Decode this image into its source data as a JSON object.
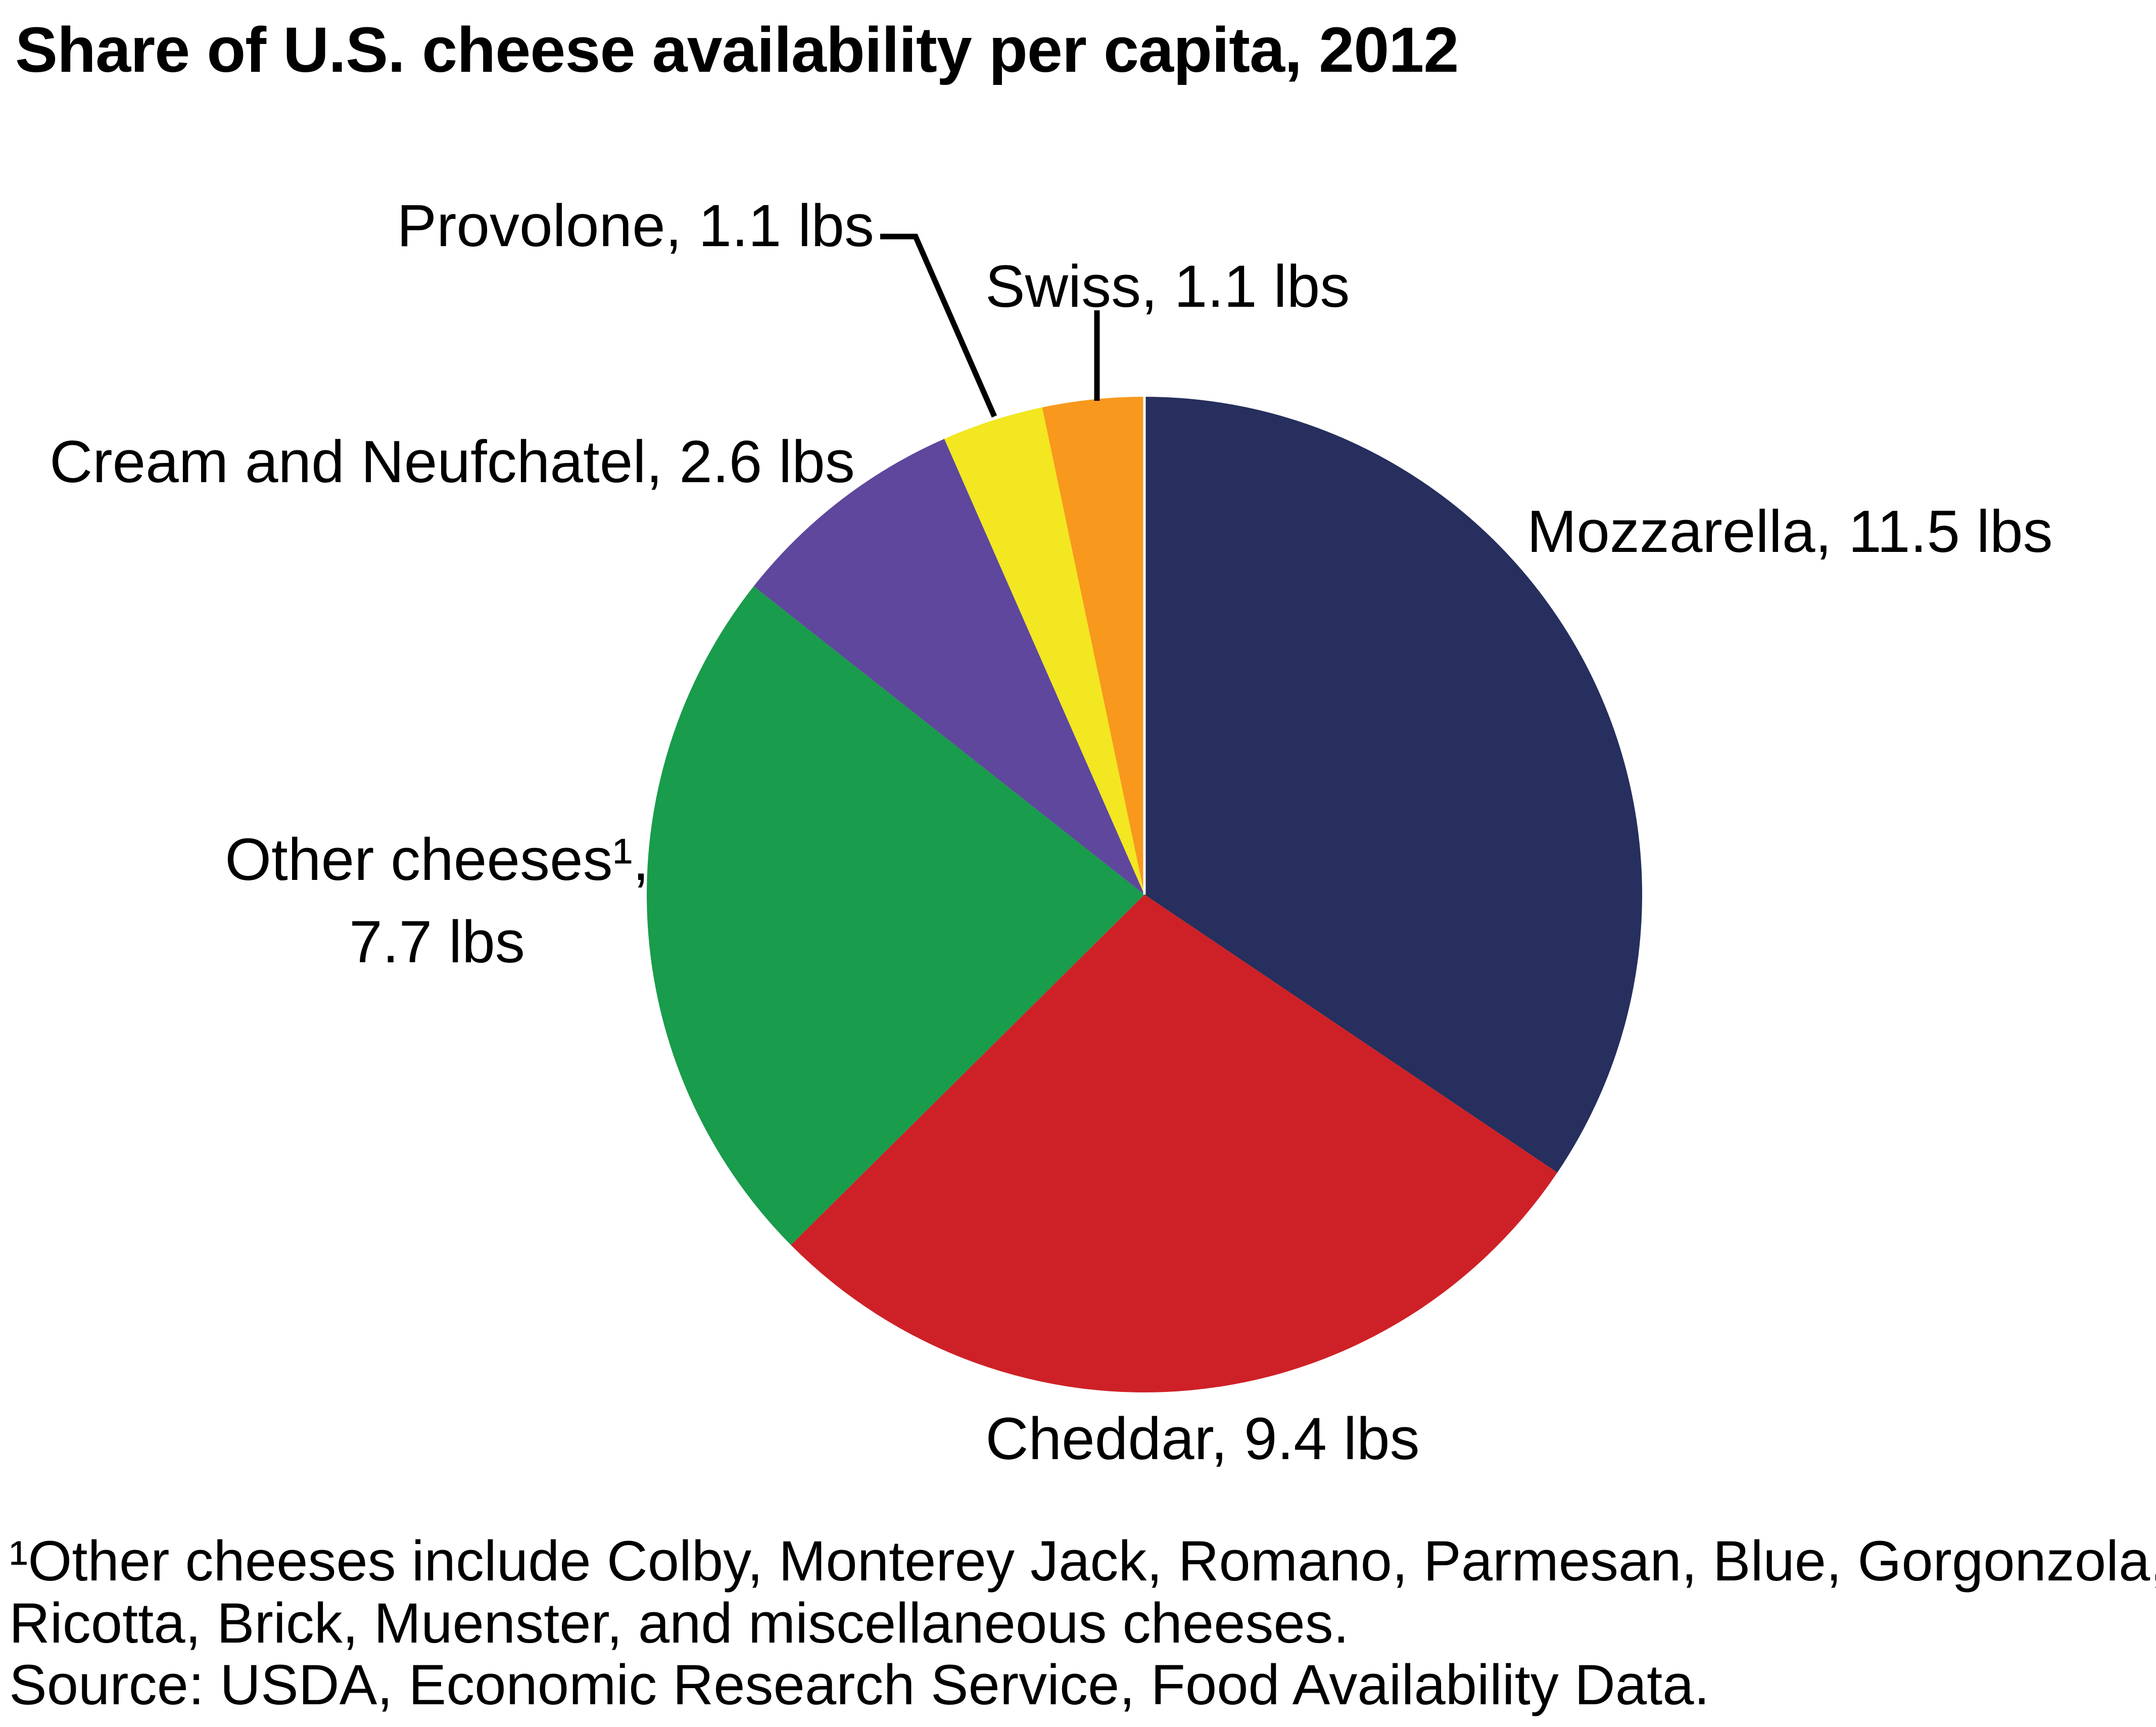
{
  "title": "Share of U.S. cheese availability per capita, 2012",
  "chart_data": {
    "type": "pie",
    "title": "Share of U.S. cheese availability per capita, 2012",
    "unit": "lbs per capita",
    "total": 33.4,
    "start_angle_deg": -90,
    "direction": "clockwise",
    "legend_position": "outside-labels",
    "slices": [
      {
        "label": "Mozzarella",
        "value": 11.5,
        "display": "Mozzarella, 11.5 lbs",
        "color": "#262F5D"
      },
      {
        "label": "Cheddar",
        "value": 9.4,
        "display": "Cheddar, 9.4 lbs",
        "color": "#CE2127"
      },
      {
        "label": "Other cheeses",
        "value": 7.7,
        "display_line1": "Other cheeses¹,",
        "display_line2": "7.7 lbs",
        "color": "#199C4B"
      },
      {
        "label": "Cream and Neufchatel",
        "value": 2.6,
        "display": "Cream and Neufchatel, 2.6 lbs",
        "color": "#5E479C"
      },
      {
        "label": "Provolone",
        "value": 1.1,
        "display": "Provolone, 1.1 lbs",
        "color": "#F2E720"
      },
      {
        "label": "Swiss",
        "value": 1.1,
        "display": "Swiss, 1.1 lbs",
        "color": "#F8981D"
      }
    ]
  },
  "footnote": {
    "line1": "¹Other cheeses include Colby, Monterey Jack, Romano, Parmesan, Blue, Gorgonzola,",
    "line2": "Ricotta, Brick, Muenster, and miscellaneous cheeses."
  },
  "source": "Source: USDA, Economic Research Service, Food Availability Data."
}
